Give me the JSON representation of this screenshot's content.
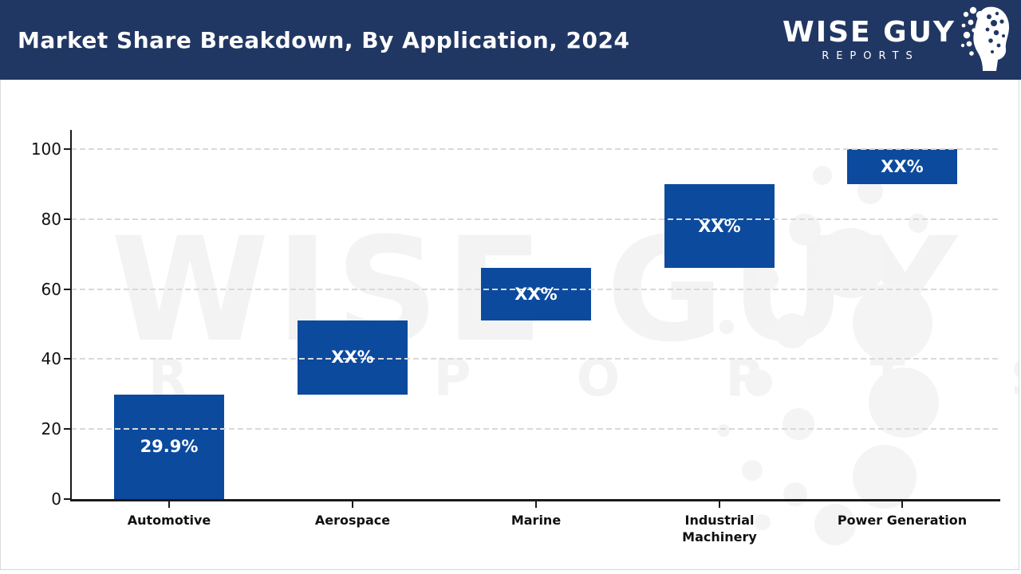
{
  "header": {
    "title": "Market Share Breakdown, By Application, 2024",
    "background_color": "#213763",
    "logo": {
      "line1": "WISE GUY",
      "line2": "REPORTS"
    }
  },
  "watermark": {
    "line1": "WISE GUY",
    "line2": "R E P O R T S"
  },
  "chart_data": {
    "type": "bar",
    "subtype": "waterfall-floating-bars",
    "title": "Market Share Breakdown, By Application, 2024",
    "xlabel": "",
    "ylabel": "",
    "categories": [
      "Automotive",
      "Aerospace",
      "Marine",
      "Industrial\nMachinery",
      "Power Generation"
    ],
    "series": [
      {
        "name": "Market Share (%)",
        "segments": [
          {
            "category": "Automotive",
            "start": 0,
            "end": 29.9,
            "label": "29.9%"
          },
          {
            "category": "Aerospace",
            "start": 29.9,
            "end": 51,
            "label": "XX%"
          },
          {
            "category": "Marine",
            "start": 51,
            "end": 66,
            "label": "XX%"
          },
          {
            "category": "Industrial Machinery",
            "start": 66,
            "end": 90,
            "label": "XX%"
          },
          {
            "category": "Power Generation",
            "start": 90,
            "end": 100,
            "label": "XX%"
          }
        ]
      }
    ],
    "ylim": [
      0,
      100
    ],
    "yticks": [
      0,
      20,
      40,
      60,
      80,
      100
    ],
    "grid": true,
    "grid_axis": "y",
    "gridline_style": "dashed",
    "gridline_color": "#d9d9d9",
    "bar_color": "#0c4a9e",
    "bar_label_color": "#ffffff",
    "axis_color": "#1a1a1a",
    "legend": "none"
  }
}
